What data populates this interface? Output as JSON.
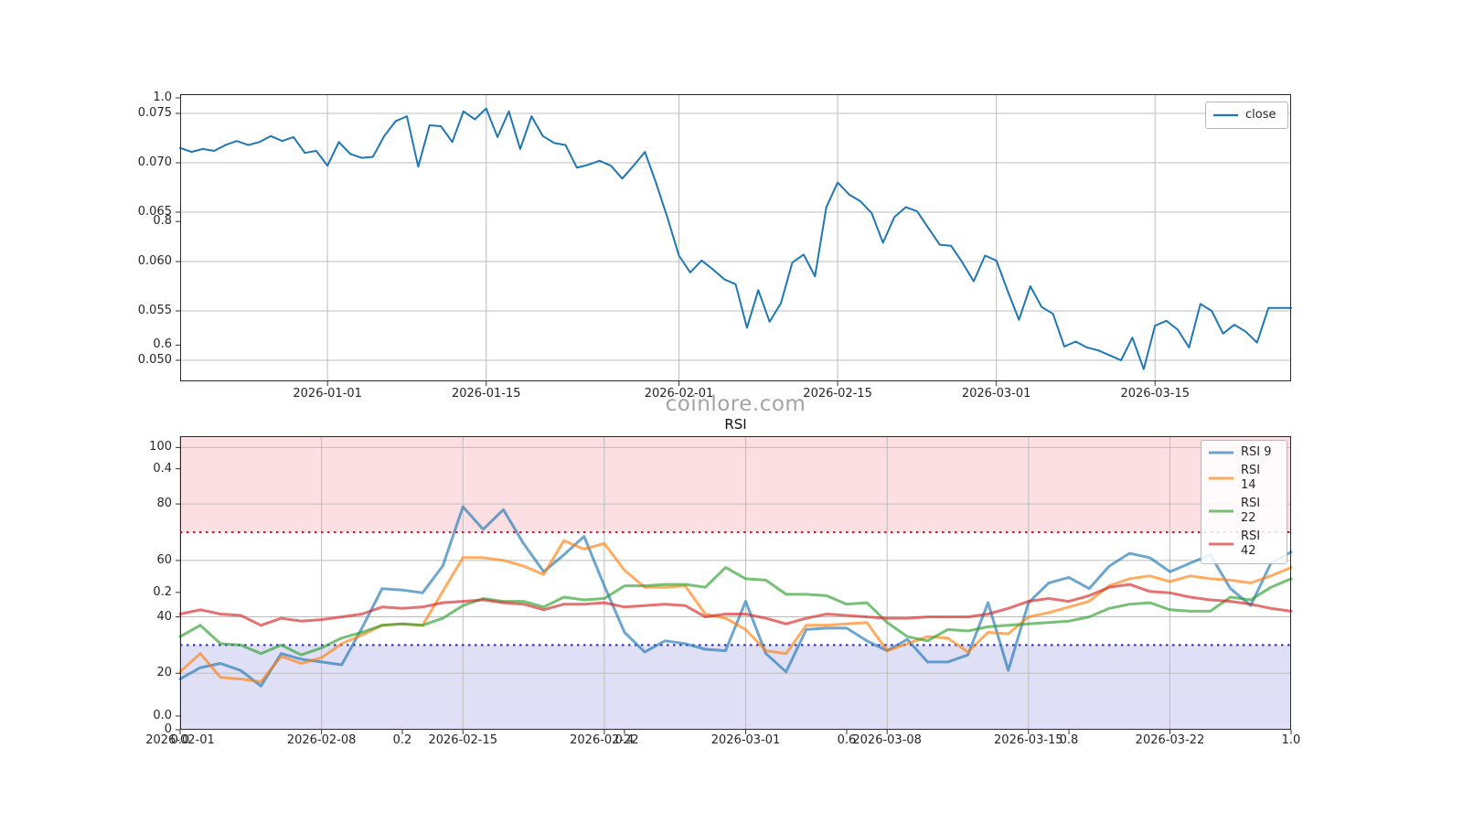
{
  "watermark": "coinlore.com",
  "figure_axis": {
    "y_tick_labels": [
      "1.0",
      "0.8",
      "0.6",
      "0.4",
      "0.2",
      "0.0"
    ],
    "x_tick_labels": [
      "0.0",
      "0.2",
      "0.4",
      "0.6",
      "0.8",
      "1.0"
    ]
  },
  "chart_data": [
    {
      "type": "line",
      "name": "price-chart",
      "title": "",
      "grid": true,
      "legend_position": "upper right",
      "ylim": [
        0.0479,
        0.0769
      ],
      "y_tick_labels": [
        "0.075",
        "0.070",
        "0.065",
        "0.060",
        "0.055",
        "0.050"
      ],
      "y_tick_values": [
        0.075,
        0.07,
        0.065,
        0.06,
        0.055,
        0.05
      ],
      "x_tick_labels": [
        "2026-01-01",
        "2026-01-15",
        "2026-02-01",
        "2026-02-15",
        "2026-03-01",
        "2026-03-15"
      ],
      "x_tick_days": [
        13,
        27,
        44,
        58,
        72,
        86
      ],
      "dates": [
        "2025-12-19",
        "2025-12-20",
        "2025-12-21",
        "2025-12-22",
        "2025-12-23",
        "2025-12-24",
        "2025-12-25",
        "2025-12-26",
        "2025-12-27",
        "2025-12-28",
        "2025-12-29",
        "2025-12-30",
        "2025-12-31",
        "2026-01-01",
        "2026-01-02",
        "2026-01-03",
        "2026-01-04",
        "2026-01-05",
        "2026-01-06",
        "2026-01-07",
        "2026-01-08",
        "2026-01-09",
        "2026-01-10",
        "2026-01-11",
        "2026-01-12",
        "2026-01-13",
        "2026-01-14",
        "2026-01-15",
        "2026-01-16",
        "2026-01-17",
        "2026-01-18",
        "2026-01-19",
        "2026-01-20",
        "2026-01-21",
        "2026-01-22",
        "2026-01-23",
        "2026-01-24",
        "2026-01-25",
        "2026-01-26",
        "2026-01-27",
        "2026-01-28",
        "2026-01-29",
        "2026-01-30",
        "2026-01-31",
        "2026-02-01",
        "2026-02-02",
        "2026-02-03",
        "2026-02-04",
        "2026-02-05",
        "2026-02-06",
        "2026-02-07",
        "2026-02-08",
        "2026-02-09",
        "2026-02-10",
        "2026-02-11",
        "2026-02-12",
        "2026-02-13",
        "2026-02-14",
        "2026-02-15",
        "2026-02-16",
        "2026-02-17",
        "2026-02-18",
        "2026-02-19",
        "2026-02-20",
        "2026-02-21",
        "2026-02-22",
        "2026-02-23",
        "2026-02-24",
        "2026-02-25",
        "2026-02-26",
        "2026-02-27",
        "2026-02-28",
        "2026-03-01",
        "2026-03-02",
        "2026-03-03",
        "2026-03-04",
        "2026-03-05",
        "2026-03-06",
        "2026-03-07",
        "2026-03-08",
        "2026-03-09",
        "2026-03-10",
        "2026-03-11",
        "2026-03-12",
        "2026-03-13",
        "2026-03-14",
        "2026-03-15",
        "2026-03-16",
        "2026-03-17",
        "2026-03-18",
        "2026-03-19",
        "2026-03-20",
        "2026-03-21",
        "2026-03-22",
        "2026-03-23",
        "2026-03-24",
        "2026-03-25",
        "2026-03-26",
        "2026-03-27"
      ],
      "series": [
        {
          "name": "close",
          "color": "#1f77b4",
          "values": [
            0.0715,
            0.0711,
            0.0714,
            0.0712,
            0.0718,
            0.0722,
            0.0718,
            0.0721,
            0.0727,
            0.0722,
            0.0726,
            0.071,
            0.0712,
            0.0697,
            0.0721,
            0.0709,
            0.0705,
            0.0706,
            0.0727,
            0.0742,
            0.0747,
            0.0696,
            0.0738,
            0.0737,
            0.0721,
            0.0752,
            0.0744,
            0.0755,
            0.0726,
            0.0752,
            0.0714,
            0.0747,
            0.0727,
            0.072,
            0.0718,
            0.0695,
            0.0698,
            0.0702,
            0.0697,
            0.0684,
            0.0697,
            0.0711,
            0.0679,
            0.0644,
            0.0606,
            0.0589,
            0.0601,
            0.0592,
            0.0582,
            0.0577,
            0.0533,
            0.0571,
            0.0539,
            0.0558,
            0.0599,
            0.0607,
            0.0585,
            0.0655,
            0.068,
            0.0668,
            0.0661,
            0.0649,
            0.0619,
            0.0645,
            0.0655,
            0.0651,
            0.0634,
            0.0617,
            0.0616,
            0.0599,
            0.058,
            0.0606,
            0.0601,
            0.057,
            0.0541,
            0.0575,
            0.0554,
            0.0547,
            0.0514,
            0.0519,
            0.0513,
            0.051,
            0.0505,
            0.05,
            0.0523,
            0.0491,
            0.0535,
            0.054,
            0.0531,
            0.0513,
            0.0557,
            0.055,
            0.0527,
            0.0536,
            0.0529,
            0.0518,
            0.0553,
            0.0553,
            0.0553
          ]
        }
      ]
    },
    {
      "type": "line",
      "name": "rsi-chart",
      "title": "RSI",
      "grid": true,
      "legend_position": "upper right",
      "ylim": [
        0,
        104
      ],
      "y_tick_labels": [
        "100",
        "80",
        "60",
        "40",
        "20",
        "0"
      ],
      "y_tick_values": [
        100,
        80,
        60,
        40,
        20,
        0
      ],
      "x_tick_labels": [
        "2026-02-01",
        "2026-02-08",
        "2026-02-15",
        "2026-02-22",
        "2026-03-01",
        "2026-03-08",
        "2026-03-15",
        "2026-03-22"
      ],
      "x_tick_days": [
        0,
        7,
        14,
        21,
        28,
        35,
        42,
        49
      ],
      "overbought_level": 70,
      "oversold_level": 30,
      "overbought_band_color": "#fbdfe2",
      "oversold_band_color": "#dfdff6",
      "overbought_line_color": "#e0102c",
      "oversold_line_color": "#2323cc",
      "dates": [
        "2026-02-01",
        "2026-02-02",
        "2026-02-03",
        "2026-02-04",
        "2026-02-05",
        "2026-02-06",
        "2026-02-07",
        "2026-02-08",
        "2026-02-09",
        "2026-02-10",
        "2026-02-11",
        "2026-02-12",
        "2026-02-13",
        "2026-02-14",
        "2026-02-15",
        "2026-02-16",
        "2026-02-17",
        "2026-02-18",
        "2026-02-19",
        "2026-02-20",
        "2026-02-21",
        "2026-02-22",
        "2026-02-23",
        "2026-02-24",
        "2026-02-25",
        "2026-02-26",
        "2026-02-27",
        "2026-02-28",
        "2026-03-01",
        "2026-03-02",
        "2026-03-03",
        "2026-03-04",
        "2026-03-05",
        "2026-03-06",
        "2026-03-07",
        "2026-03-08",
        "2026-03-09",
        "2026-03-10",
        "2026-03-11",
        "2026-03-12",
        "2026-03-13",
        "2026-03-14",
        "2026-03-15",
        "2026-03-16",
        "2026-03-17",
        "2026-03-18",
        "2026-03-19",
        "2026-03-20",
        "2026-03-21",
        "2026-03-22",
        "2026-03-23",
        "2026-03-24",
        "2026-03-25",
        "2026-03-26",
        "2026-03-27",
        "2026-03-28"
      ],
      "series": [
        {
          "name": "RSI 9",
          "color": "#1f77b4",
          "values": [
            18,
            22,
            23.5,
            21,
            15.5,
            27,
            25,
            24,
            23,
            36,
            50,
            49.5,
            48.5,
            58,
            79,
            71,
            78,
            66,
            56,
            62,
            68.5,
            51,
            34.5,
            27.5,
            31.5,
            30.5,
            28.5,
            28,
            45.5,
            27,
            20.5,
            35.5,
            36,
            36,
            31.5,
            28,
            32,
            24,
            24,
            26.5,
            45,
            21,
            45,
            52,
            54,
            50,
            58,
            62.5,
            61,
            56,
            59,
            62,
            50,
            44,
            59,
            63
          ]
        },
        {
          "name": "RSI 14",
          "color": "#ff7f0e",
          "values": [
            20.5,
            27,
            18.5,
            18,
            17,
            26,
            23.5,
            25.5,
            30.5,
            33.5,
            37,
            37.5,
            37,
            49,
            61,
            61,
            60,
            58,
            55,
            67,
            64,
            66,
            56.5,
            50.5,
            50.5,
            51,
            41,
            39.5,
            35.5,
            28,
            27,
            37,
            37,
            37.5,
            38,
            28,
            30.5,
            33,
            32.5,
            27.5,
            34.5,
            34,
            40,
            41.5,
            43.5,
            45.5,
            51,
            53.5,
            54.5,
            52.5,
            54.5,
            53.5,
            53,
            52,
            54.5,
            57.5
          ]
        },
        {
          "name": "RSI 22",
          "color": "#2ca02c",
          "values": [
            33,
            37,
            30.5,
            30,
            27,
            30,
            26.5,
            29,
            32.5,
            34.5,
            37,
            37.5,
            37,
            39.5,
            44,
            46.5,
            45.5,
            45.5,
            43.5,
            47,
            46,
            46.5,
            51,
            51,
            51.5,
            51.5,
            50.5,
            57.5,
            53.5,
            53,
            48,
            48,
            47.5,
            44.5,
            45,
            38,
            33,
            31.5,
            35.5,
            35,
            36.5,
            37,
            37.5,
            38,
            38.5,
            40,
            43,
            44.5,
            45,
            42.5,
            42,
            42,
            47,
            46,
            50.5,
            53.5
          ]
        },
        {
          "name": "RSI 42",
          "color": "#d62728",
          "values": [
            41,
            42.5,
            41,
            40.5,
            37,
            39.5,
            38.5,
            39,
            40,
            41,
            43.5,
            43,
            43.5,
            45,
            45.5,
            46,
            45,
            44.5,
            42.5,
            44.5,
            44.5,
            45,
            43.5,
            44,
            44.5,
            44,
            40,
            41,
            41,
            39.5,
            37.5,
            39.5,
            41,
            40.5,
            40,
            39.5,
            39.5,
            40,
            40,
            40,
            41,
            43,
            45.5,
            46.5,
            45.5,
            47.5,
            50.5,
            51.5,
            49,
            48.5,
            47,
            46,
            45.5,
            44.5,
            43,
            42
          ]
        }
      ]
    }
  ]
}
